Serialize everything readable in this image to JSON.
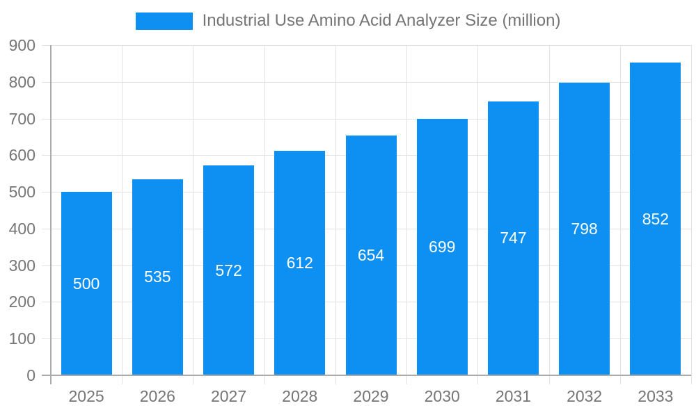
{
  "chart_data": {
    "type": "bar",
    "title": "Industrial Use Amino Acid Analyzer Size (million)",
    "categories": [
      "2025",
      "2026",
      "2027",
      "2028",
      "2029",
      "2030",
      "2031",
      "2032",
      "2033"
    ],
    "values": [
      500,
      535,
      572,
      612,
      654,
      699,
      747,
      798,
      852
    ],
    "xlabel": "",
    "ylabel": "",
    "ylim": [
      0,
      900
    ],
    "ytick_step": 100,
    "ytick_labels": [
      "0",
      "100",
      "200",
      "300",
      "400",
      "500",
      "600",
      "700",
      "800",
      "900"
    ],
    "grid": true,
    "legend_position": "top-center",
    "bar_value_labels_inside": true,
    "colors": {
      "bar": "#0d90f2",
      "bar_label": "#ffffff",
      "axis_text": "#757575",
      "legend_text": "#757575",
      "grid_line": "#e2e2e2",
      "axis_line": "#ababab",
      "background": "#ffffff"
    }
  }
}
